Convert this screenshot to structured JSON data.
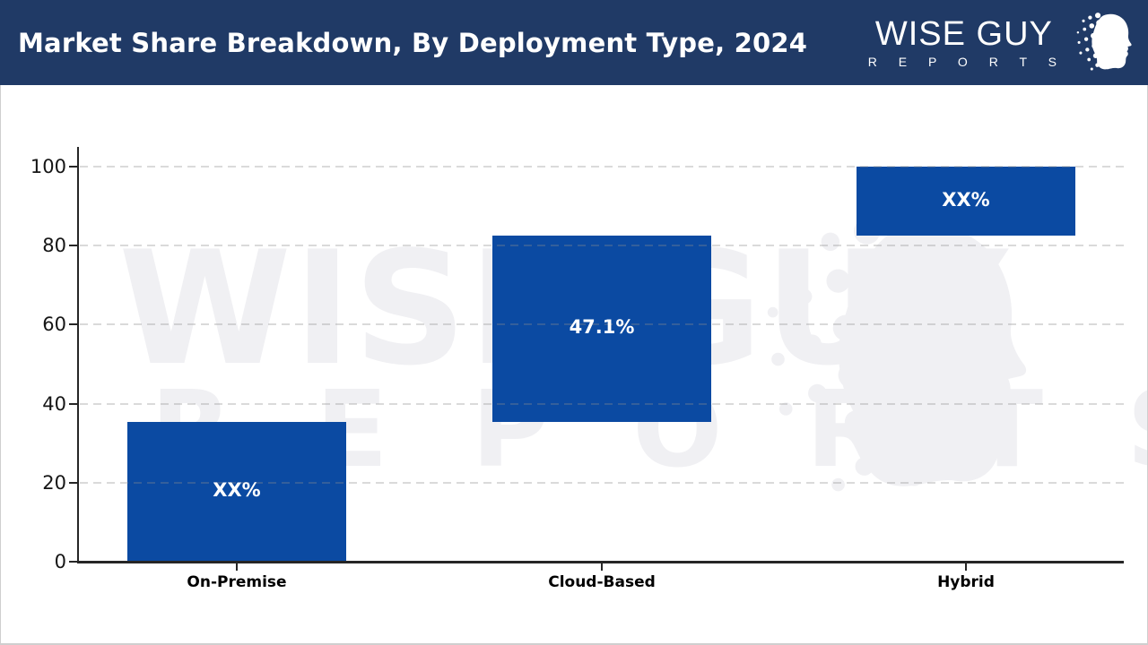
{
  "header": {
    "title": "Market Share Breakdown, By Deployment Type, 2024",
    "logo": {
      "primary": "WISE GUY",
      "secondary": "R E P O R T S",
      "face_icon": "dotted-head-profile"
    }
  },
  "watermark": {
    "primary": "WISE GUY",
    "secondary": "R E P O R T S",
    "face_icon": "dotted-head-profile"
  },
  "chart_data": {
    "type": "bar",
    "variant": "waterfall-floating-bars",
    "title": "Market Share Breakdown, By Deployment Type, 2024",
    "categories": [
      "On-Premise",
      "Cloud-Based",
      "Hybrid"
    ],
    "bars": [
      {
        "category": "On-Premise",
        "start": 0,
        "end": 35.4,
        "label": "XX%"
      },
      {
        "category": "Cloud-Based",
        "start": 35.4,
        "end": 82.5,
        "label": "47.1%"
      },
      {
        "category": "Hybrid",
        "start": 82.5,
        "end": 100,
        "label": "XX%"
      }
    ],
    "xlabel": "",
    "ylabel": "",
    "yticks": [
      0,
      20,
      40,
      60,
      80,
      100
    ],
    "ylim": [
      0,
      105
    ],
    "grid": "horizontal-dashed-over-bars",
    "legend": "none",
    "bar_color": "#0B4AA2"
  },
  "colors": {
    "header_bg": "#203A66",
    "bar": "#0B4AA2",
    "axis": "#262626",
    "tick_label": "#151515",
    "gridline": "rgba(140,140,140,0.32)",
    "watermark": "#F0F0F3",
    "border": "#CFCFCF",
    "title_text": "#FFFFFF"
  }
}
